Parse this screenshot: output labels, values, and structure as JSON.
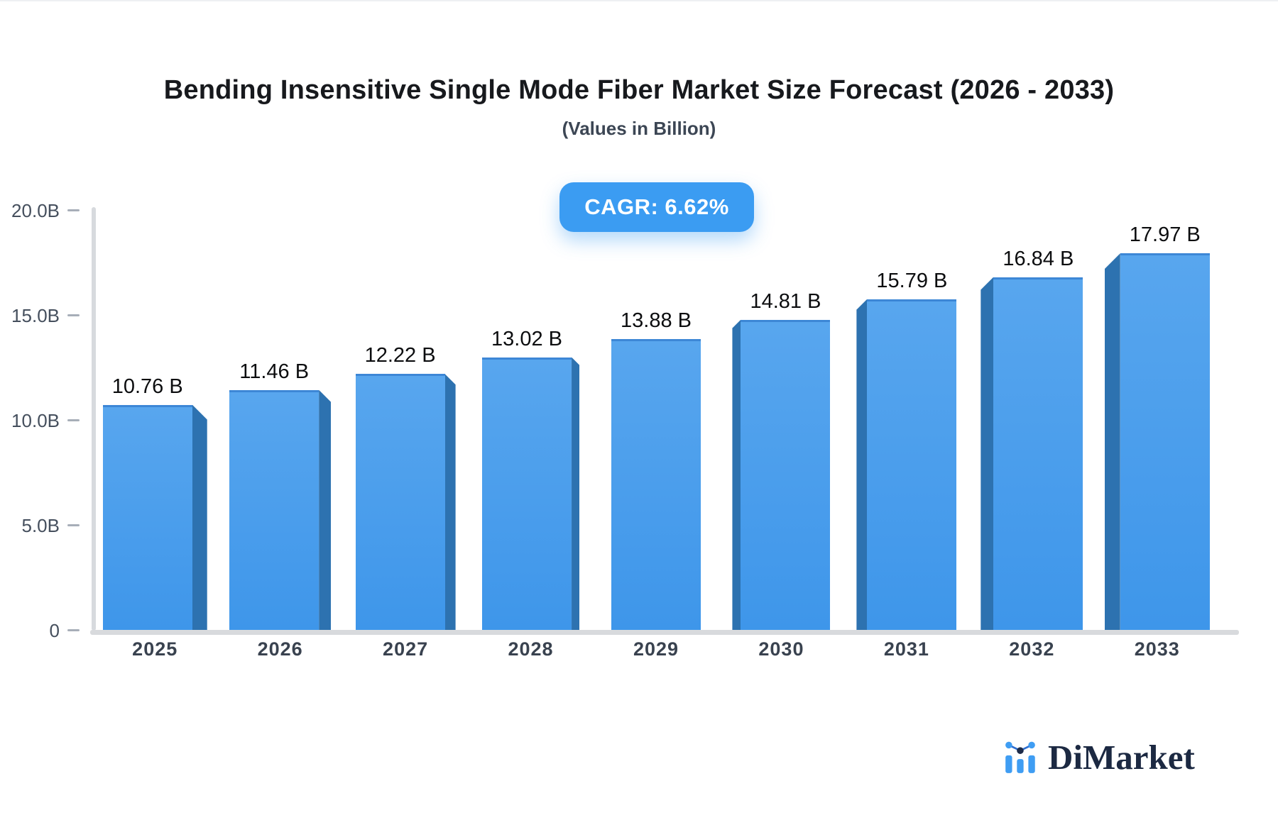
{
  "header": {
    "title": "Bending Insensitive Single Mode Fiber Market Size Forecast (2026 - 2033)",
    "subtitle": "(Values in Billion)",
    "cagr_label": "CAGR: 6.62%"
  },
  "chart_data": {
    "type": "bar",
    "title": "Bending Insensitive Single Mode Fiber Market Size Forecast (2026 - 2033)",
    "subtitle": "(Values in Billion)",
    "cagr_percent": 6.62,
    "categories": [
      "2025",
      "2026",
      "2027",
      "2028",
      "2029",
      "2030",
      "2031",
      "2032",
      "2033"
    ],
    "values": [
      10.76,
      11.46,
      12.22,
      13.02,
      13.88,
      14.81,
      15.79,
      16.84,
      17.97
    ],
    "value_labels": [
      "10.76 B",
      "11.46 B",
      "12.22 B",
      "13.02 B",
      "13.88 B",
      "14.81 B",
      "15.79 B",
      "16.84 B",
      "17.97 B"
    ],
    "xlabel": "",
    "ylabel": "",
    "ylim": [
      0,
      20
    ],
    "yticks": [
      {
        "value": 20,
        "label": "20.0B"
      },
      {
        "value": 15,
        "label": "15.0B"
      },
      {
        "value": 10,
        "label": "10.0B"
      },
      {
        "value": 5,
        "label": "5.0B"
      },
      {
        "value": 0,
        "label": "0"
      }
    ],
    "grid": false,
    "legend": "none",
    "bar_style": "3d-perspective",
    "colors": {
      "bar_face_top": "#58a6ee",
      "bar_face_bottom": "#3e96ea",
      "bar_side": "#2d72b0",
      "axis_line": "#d7dade",
      "baseline": "#d8dadd",
      "tick_text": "#454f5d",
      "value_text": "#0c0d0f",
      "badge_bg": "#3b9cf2",
      "badge_text": "#ffffff"
    }
  },
  "branding": {
    "logo_text": "DiMarket",
    "logo_icon": "bar-chart-trend-icon",
    "logo_text_color": "#1c2942",
    "logo_icon_color": "#3f9df3"
  }
}
